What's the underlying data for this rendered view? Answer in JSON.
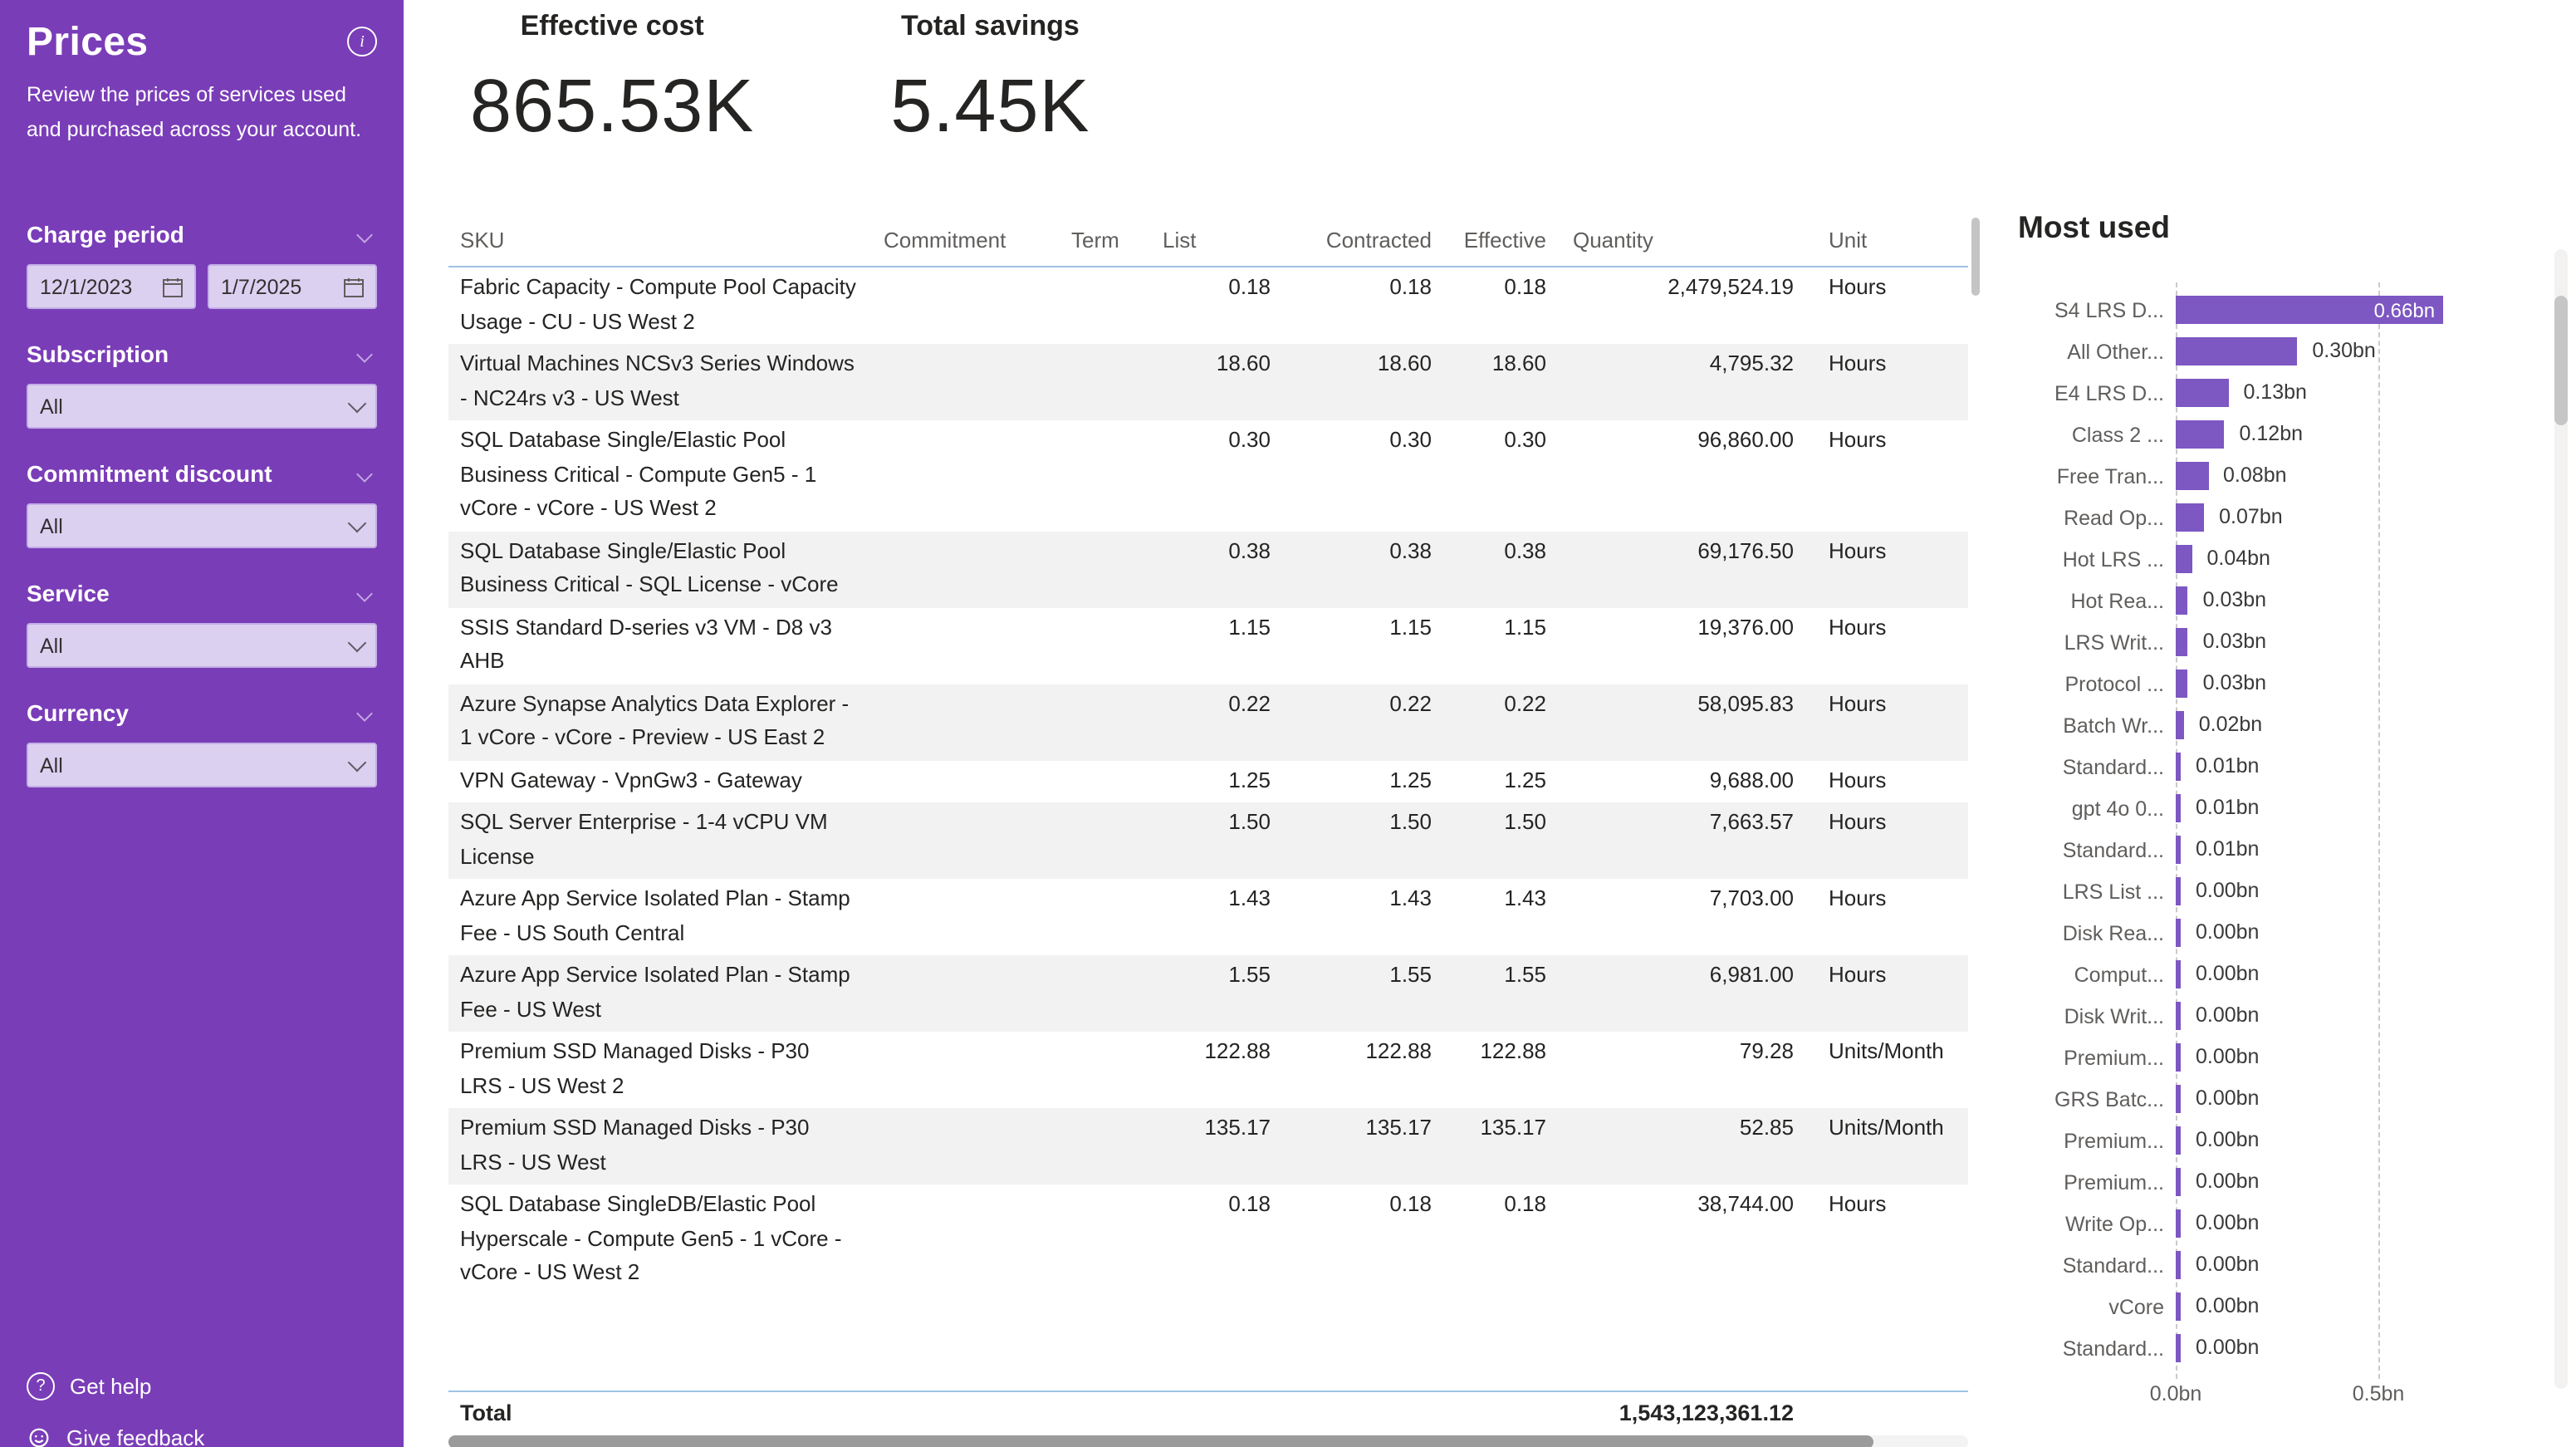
{
  "sidebar": {
    "title": "Prices",
    "description": "Review the prices of services used and purchased across your account.",
    "filters": [
      {
        "label": "Charge period",
        "type": "date-range",
        "start": "12/1/2023",
        "end": "1/7/2025"
      },
      {
        "label": "Subscription",
        "value": "All"
      },
      {
        "label": "Commitment discount",
        "value": "All"
      },
      {
        "label": "Service",
        "value": "All"
      },
      {
        "label": "Currency",
        "value": "All"
      }
    ],
    "footer": {
      "get_help": "Get help",
      "give_feedback": "Give feedback"
    }
  },
  "kpis": [
    {
      "label": "Effective cost",
      "value": "865.53K"
    },
    {
      "label": "Total savings",
      "value": "5.45K"
    }
  ],
  "table": {
    "columns": [
      "SKU",
      "Commitment",
      "Term",
      "List",
      "Contracted",
      "Effective",
      "Quantity",
      "Unit"
    ],
    "rows": [
      {
        "sku": "Fabric Capacity - Compute Pool Capacity Usage - CU - US West 2",
        "commitment": "",
        "term": "",
        "list": "0.18",
        "contracted": "0.18",
        "effective": "0.18",
        "quantity": "2,479,524.19",
        "unit": "Hours"
      },
      {
        "sku": "Virtual Machines NCSv3 Series Windows - NC24rs v3 - US West",
        "commitment": "",
        "term": "",
        "list": "18.60",
        "contracted": "18.60",
        "effective": "18.60",
        "quantity": "4,795.32",
        "unit": "Hours"
      },
      {
        "sku": "SQL Database Single/Elastic Pool Business Critical - Compute Gen5 - 1 vCore - vCore - US West 2",
        "commitment": "",
        "term": "",
        "list": "0.30",
        "contracted": "0.30",
        "effective": "0.30",
        "quantity": "96,860.00",
        "unit": "Hours"
      },
      {
        "sku": "SQL Database Single/Elastic Pool Business Critical - SQL License - vCore",
        "commitment": "",
        "term": "",
        "list": "0.38",
        "contracted": "0.38",
        "effective": "0.38",
        "quantity": "69,176.50",
        "unit": "Hours"
      },
      {
        "sku": "SSIS Standard D-series v3 VM - D8 v3 AHB",
        "commitment": "",
        "term": "",
        "list": "1.15",
        "contracted": "1.15",
        "effective": "1.15",
        "quantity": "19,376.00",
        "unit": "Hours"
      },
      {
        "sku": "Azure Synapse Analytics Data Explorer - 1 vCore - vCore - Preview - US East 2",
        "commitment": "",
        "term": "",
        "list": "0.22",
        "contracted": "0.22",
        "effective": "0.22",
        "quantity": "58,095.83",
        "unit": "Hours"
      },
      {
        "sku": "VPN Gateway - VpnGw3 - Gateway",
        "commitment": "",
        "term": "",
        "list": "1.25",
        "contracted": "1.25",
        "effective": "1.25",
        "quantity": "9,688.00",
        "unit": "Hours"
      },
      {
        "sku": "SQL Server Enterprise - 1-4 vCPU VM License",
        "commitment": "",
        "term": "",
        "list": "1.50",
        "contracted": "1.50",
        "effective": "1.50",
        "quantity": "7,663.57",
        "unit": "Hours"
      },
      {
        "sku": "Azure App Service Isolated Plan - Stamp Fee - US South Central",
        "commitment": "",
        "term": "",
        "list": "1.43",
        "contracted": "1.43",
        "effective": "1.43",
        "quantity": "7,703.00",
        "unit": "Hours"
      },
      {
        "sku": "Azure App Service Isolated Plan - Stamp Fee - US West",
        "commitment": "",
        "term": "",
        "list": "1.55",
        "contracted": "1.55",
        "effective": "1.55",
        "quantity": "6,981.00",
        "unit": "Hours"
      },
      {
        "sku": "Premium SSD Managed Disks - P30 LRS - US West 2",
        "commitment": "",
        "term": "",
        "list": "122.88",
        "contracted": "122.88",
        "effective": "122.88",
        "quantity": "79.28",
        "unit": "Units/Month"
      },
      {
        "sku": "Premium SSD Managed Disks - P30 LRS - US West",
        "commitment": "",
        "term": "",
        "list": "135.17",
        "contracted": "135.17",
        "effective": "135.17",
        "quantity": "52.85",
        "unit": "Units/Month"
      },
      {
        "sku": "SQL Database SingleDB/Elastic Pool Hyperscale - Compute Gen5 - 1 vCore - vCore - US West 2",
        "commitment": "",
        "term": "",
        "list": "0.18",
        "contracted": "0.18",
        "effective": "0.18",
        "quantity": "38,744.00",
        "unit": "Hours"
      }
    ],
    "total_label": "Total",
    "total_quantity": "1,543,123,361.12"
  },
  "chart_data": {
    "type": "bar",
    "orientation": "horizontal",
    "title": "Most used",
    "categories": [
      "S4 LRS D...",
      "All Other...",
      "E4 LRS D...",
      "Class 2 ...",
      "Free Tran...",
      "Read Op...",
      "Hot LRS ...",
      "Hot Rea...",
      "LRS Writ...",
      "Protocol ...",
      "Batch Wr...",
      "Standard...",
      "gpt 4o 0...",
      "Standard...",
      "LRS List ...",
      "Disk Rea...",
      "Comput...",
      "Disk Writ...",
      "Premium...",
      "GRS Batc...",
      "Premium...",
      "Premium...",
      "Write Op...",
      "Standard...",
      "vCore",
      "Standard..."
    ],
    "values": [
      0.66,
      0.3,
      0.13,
      0.12,
      0.08,
      0.07,
      0.04,
      0.03,
      0.03,
      0.03,
      0.02,
      0.01,
      0.01,
      0.01,
      0,
      0,
      0,
      0,
      0,
      0,
      0,
      0,
      0,
      0,
      0,
      0
    ],
    "value_labels": [
      "0.66bn",
      "0.30bn",
      "0.13bn",
      "0.12bn",
      "0.08bn",
      "0.07bn",
      "0.04bn",
      "0.03bn",
      "0.03bn",
      "0.03bn",
      "0.02bn",
      "0.01bn",
      "0.01bn",
      "0.01bn",
      "0.00bn",
      "0.00bn",
      "0.00bn",
      "0.00bn",
      "0.00bn",
      "0.00bn",
      "0.00bn",
      "0.00bn",
      "0.00bn",
      "0.00bn",
      "0.00bn",
      "0.00bn"
    ],
    "inside_value_label_index": 0,
    "xticks": [
      "0.0bn",
      "0.5bn"
    ],
    "xlim": [
      0,
      0.7
    ],
    "bar_color": "#7D57C2"
  },
  "colors": {
    "sidebar_purple": "#7A3DB8",
    "bar_purple": "#7D57C2",
    "row_alt_gray": "#F2F2F2",
    "separator_blue": "#9DC3E6"
  }
}
